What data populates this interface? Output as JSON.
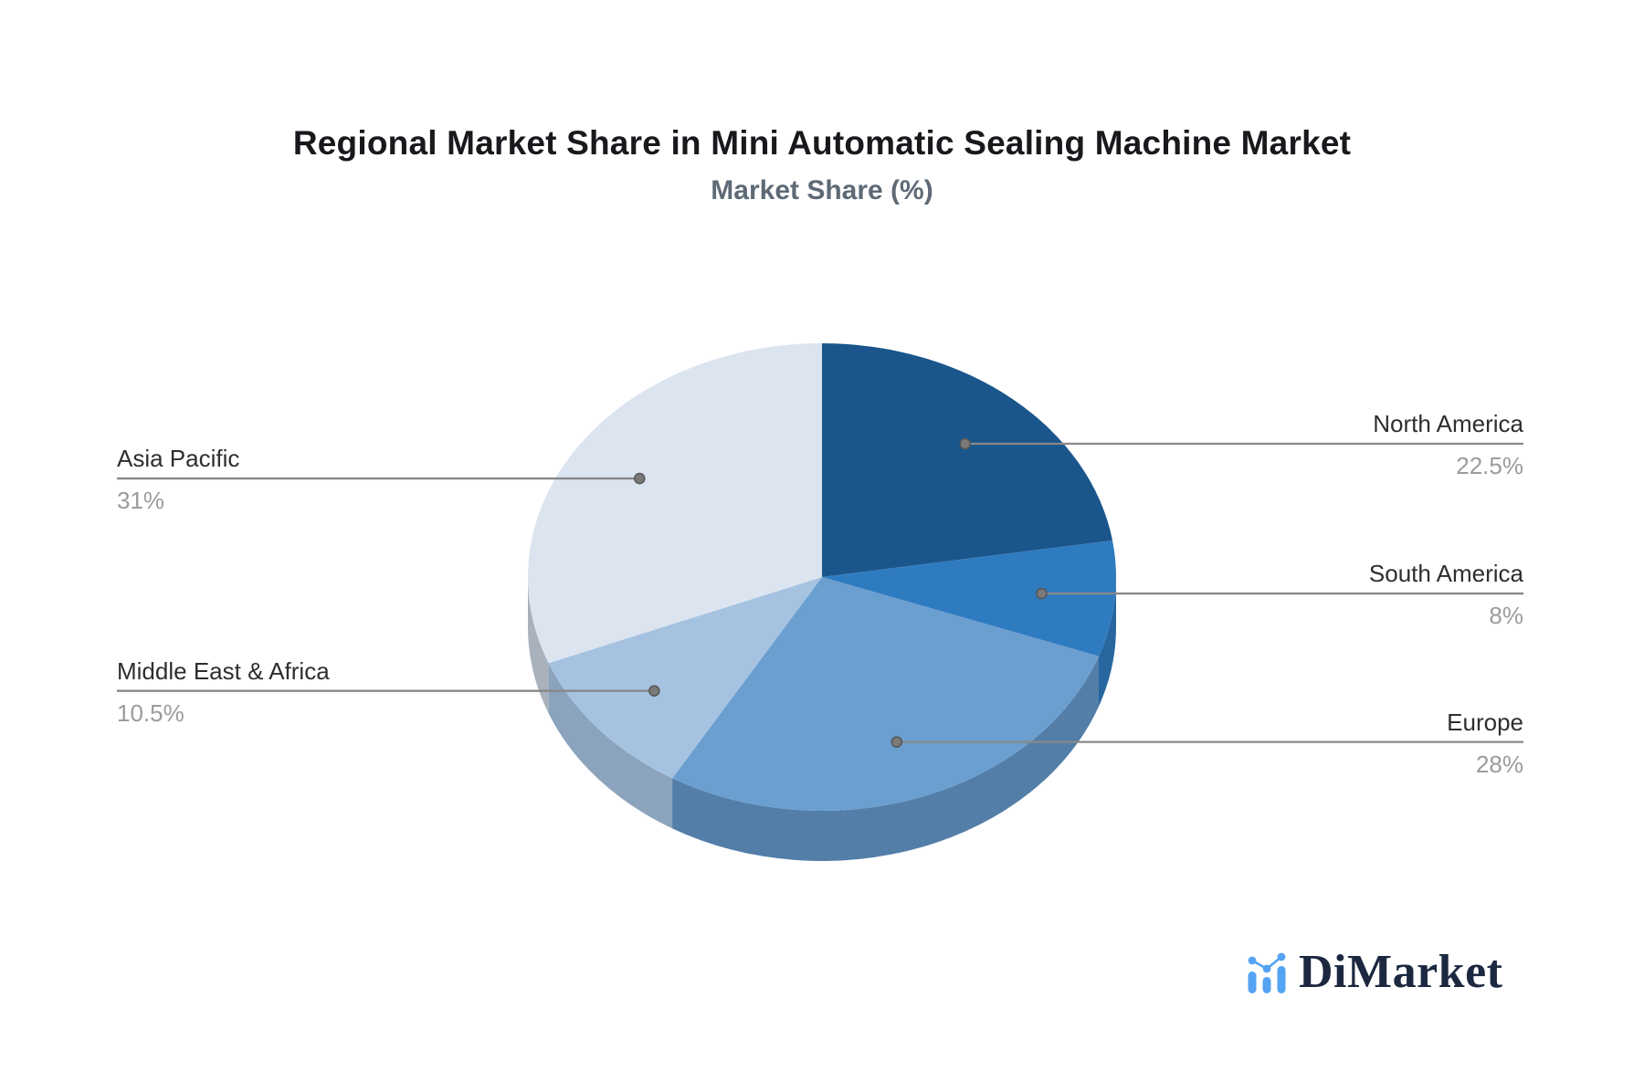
{
  "title": "Regional Market Share in Mini Automatic Sealing Machine Market",
  "subtitle": "Market Share (%)",
  "brand": {
    "name": "DiMarket",
    "accent_color": "#55A3F3",
    "text_color": "#1B2840"
  },
  "colors": {
    "background": "#FFFFFF",
    "title_text": "#17191C",
    "subtitle_text": "#5E6A76",
    "label_text": "#2E2E2E",
    "value_text": "#9A9B9D",
    "leader_line": "#888888",
    "leader_dot": "#7A7A7A"
  },
  "chart_data": {
    "type": "pie",
    "title": "Regional Market Share in Mini Automatic Sealing Machine Market",
    "subtitle": "Market Share (%)",
    "unit": "%",
    "style": "3d-pie",
    "start_angle": "top",
    "direction": "clockwise",
    "legend": "none",
    "slices": [
      {
        "label": "North America",
        "value": 22.5,
        "display": "22.5%",
        "color": "#1A568C",
        "side_color": "#164A7A"
      },
      {
        "label": "South America",
        "value": 8,
        "display": "8%",
        "color": "#2F7BC0",
        "side_color": "#27669F"
      },
      {
        "label": "Europe",
        "value": 28,
        "display": "28%",
        "color": "#6A9FD0",
        "side_color": "#527EA8"
      },
      {
        "label": "Middle East & Africa",
        "value": 10.5,
        "display": "10.5%",
        "color": "#A5C3E1",
        "side_color": "#8BA3BD"
      },
      {
        "label": "Asia Pacific",
        "value": 31,
        "display": "31%",
        "color": "#DCE4F0",
        "side_color": "#A9B1BD"
      }
    ]
  }
}
